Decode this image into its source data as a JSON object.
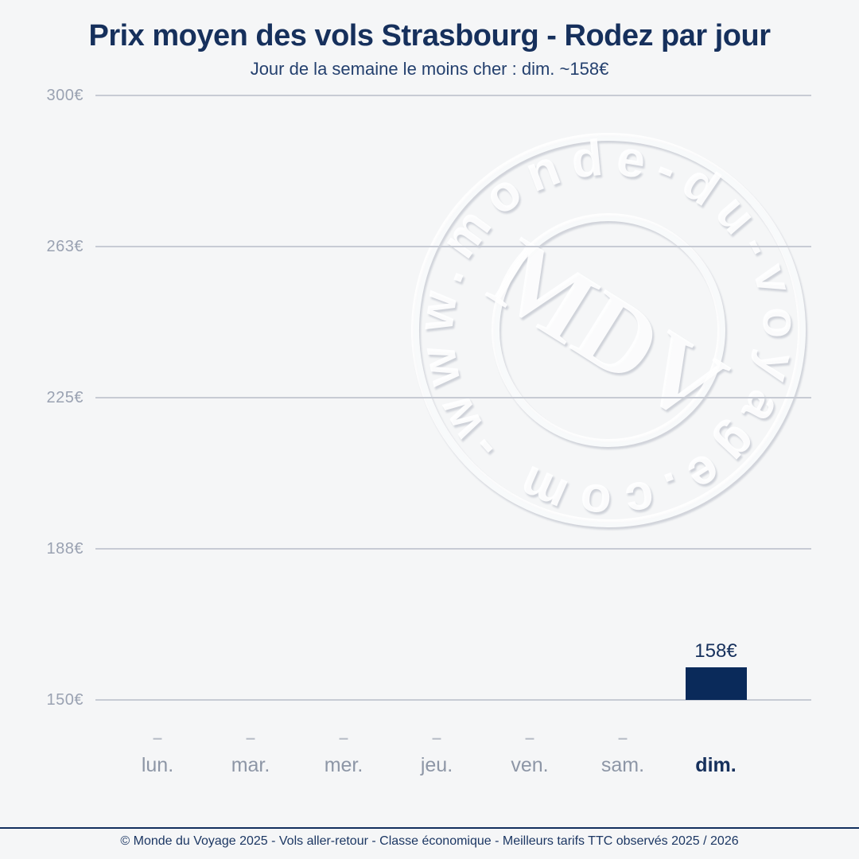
{
  "chart_data": {
    "type": "bar",
    "title": "Prix moyen des vols Strasbourg - Rodez par jour",
    "subtitle": "Jour de la semaine le moins cher : dim. ~158€",
    "categories": [
      "lun.",
      "mar.",
      "mer.",
      "jeu.",
      "ven.",
      "sam.",
      "dim."
    ],
    "values": [
      null,
      null,
      null,
      null,
      null,
      null,
      158
    ],
    "no_data_marker": "–",
    "bar_value_label": "158€",
    "highlighted_category": "dim.",
    "yticks": [
      {
        "label": "300€",
        "value": 300
      },
      {
        "label": "263€",
        "value": 263
      },
      {
        "label": "225€",
        "value": 225
      },
      {
        "label": "188€",
        "value": 188
      },
      {
        "label": "150€",
        "value": 150
      }
    ],
    "ylim": [
      150,
      300
    ],
    "xlabel": "",
    "ylabel": "",
    "grid": true,
    "legend": false,
    "colors": {
      "bar": "#0a2a5a",
      "title": "#16305c",
      "subtitle": "#24406e",
      "tick_label": "#9aa2b2",
      "day_label": "#8d96a6",
      "day_label_active": "#16305c",
      "gridline": "#c7cbd4",
      "background": "#f5f6f7"
    }
  },
  "watermark": {
    "ring_text": "www.monde-du-voyage.com - ",
    "center_text": "MDV"
  },
  "footer": {
    "text": "© Monde du Voyage 2025 - Vols aller-retour - Classe économique - Meilleurs tarifs TTC observés 2025 / 2026"
  }
}
